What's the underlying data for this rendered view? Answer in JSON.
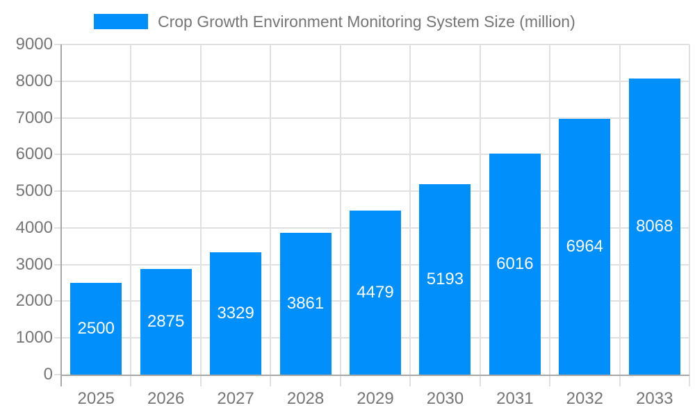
{
  "chart_data": {
    "type": "bar",
    "title": "Crop Growth Environment Monitoring System Size (million)",
    "categories": [
      "2025",
      "2026",
      "2027",
      "2028",
      "2029",
      "2030",
      "2031",
      "2032",
      "2033"
    ],
    "values": [
      2500,
      2875,
      3329,
      3861,
      4479,
      5193,
      6016,
      6964,
      8068
    ],
    "xlabel": "",
    "ylabel": "",
    "ylim": [
      0,
      9000
    ],
    "ytick_step": 1000,
    "grid": true,
    "legend_position": "top",
    "colors": {
      "bar": "#008FFB",
      "bar_label": "#ffffff",
      "grid": "#e0e0e0",
      "axis_line": "#a6a6a6",
      "axis_text": "#757575"
    }
  }
}
